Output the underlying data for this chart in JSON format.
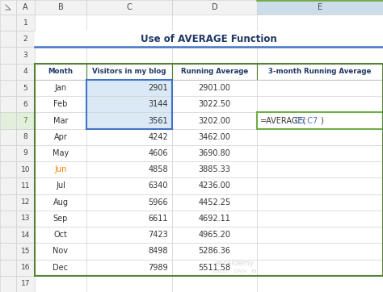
{
  "title": "Use of AVERAGE Function",
  "col_headers": [
    "Month",
    "Visitors in my blog",
    "Running Average",
    "3-month Running Average"
  ],
  "months": [
    "Jan",
    "Feb",
    "Mar",
    "Apr",
    "May",
    "Jun",
    "Jul",
    "Aug",
    "Sep",
    "Oct",
    "Nov",
    "Dec"
  ],
  "visitors": [
    2901,
    3144,
    3561,
    4242,
    4606,
    4858,
    6340,
    5966,
    6611,
    7423,
    8498,
    7989
  ],
  "running_avg": [
    "2901.00",
    "3022.50",
    "3202.00",
    "3462.00",
    "3690.80",
    "3885.33",
    "4236.00",
    "4452.25",
    "4692.11",
    "4965.20",
    "5286.36",
    "5511.58"
  ],
  "formula_text": "=AVERAGE(C5:C7)",
  "col_letters": [
    "A",
    "B",
    "C",
    "D",
    "E"
  ],
  "bg_color": "#FFFFFF",
  "grid_color": "#D0D0D0",
  "highlight_blue_bg": "#DAE9F5",
  "formula_cell_border": "#70AD47",
  "selected_col_header_bg": "#CCDCEA",
  "col_header_bg": "#F2F2F2",
  "row_num_bg": "#F2F2F2",
  "row7_num_bg": "#E2EFDA",
  "table_border_color": "#538135",
  "inner_border_color": "#538135",
  "blue_border_color": "#4472C4",
  "title_color": "#1F3864",
  "header_text_color": "#1F3864",
  "watermark_color": "#B0B0B0"
}
